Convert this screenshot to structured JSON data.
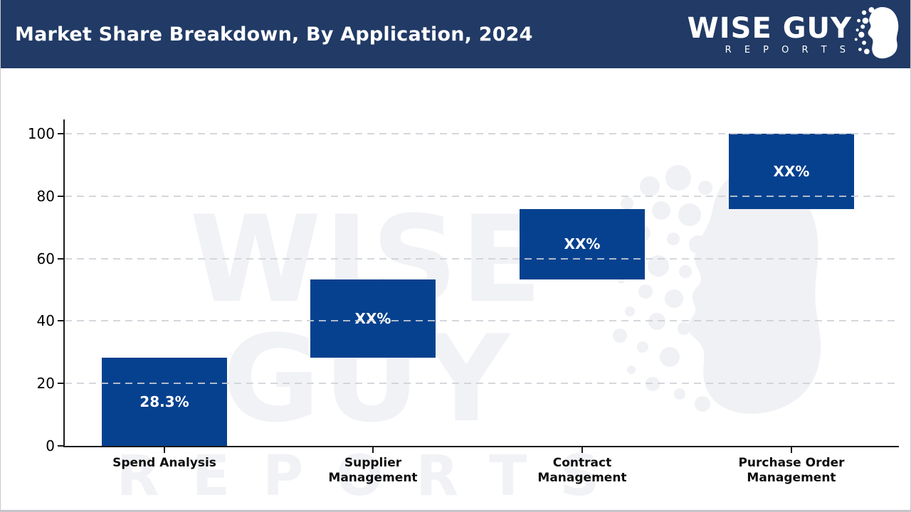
{
  "header": {
    "title": "Market Share Breakdown, By Application, 2024",
    "bg_color": "#213a66",
    "logo": {
      "line1": "WISE GUY",
      "line2": "R E P O R T S"
    }
  },
  "watermark": {
    "line1": "WISE GUY",
    "line2": "REPORTS"
  },
  "chart_data": {
    "type": "bar",
    "subtype": "waterfall",
    "title": "Market Share Breakdown, By Application, 2024",
    "categories": [
      [
        "Spend Analysis"
      ],
      [
        "Supplier",
        "Management"
      ],
      [
        "Contract",
        "Management"
      ],
      [
        "Purchase Order",
        "Management"
      ]
    ],
    "segments": [
      {
        "label": "28.3%",
        "start": 0,
        "end": 28.3
      },
      {
        "label": "XX%",
        "start": 28.3,
        "end": 53.3
      },
      {
        "label": "XX%",
        "start": 53.3,
        "end": 75.9
      },
      {
        "label": "XX%",
        "start": 75.9,
        "end": 100
      }
    ],
    "ylim": [
      0,
      100
    ],
    "yticks": [
      0,
      20,
      40,
      60,
      80,
      100
    ],
    "grid": "dashed-horizontal",
    "legend": "none",
    "bar_color": "#06418f",
    "bar_label_color": "#ffffff",
    "axis_color": "#1a1a1a"
  }
}
